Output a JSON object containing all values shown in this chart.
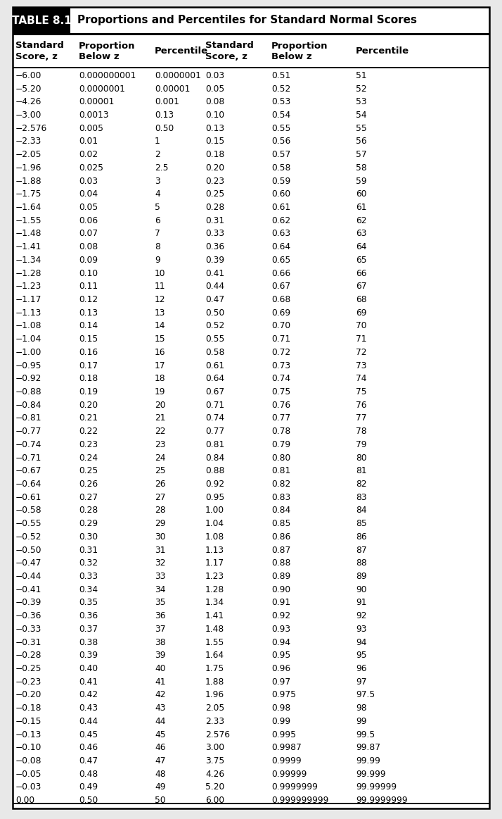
{
  "title": "Proportions and Percentiles for Standard Normal Scores",
  "table_label": "TABLE 8.1",
  "col_headers_left": [
    "Standard\nScore, z",
    "Proportion\nBelow z",
    "Percentile"
  ],
  "col_headers_right": [
    "Standard\nScore, z",
    "Proportion\nBelow z",
    "Percentile"
  ],
  "rows": [
    [
      "−6.00",
      "0.000000001",
      "0.0000001",
      "0.03",
      "0.51",
      "51"
    ],
    [
      "−5.20",
      "0.0000001",
      "0.00001",
      "0.05",
      "0.52",
      "52"
    ],
    [
      "−4.26",
      "0.00001",
      "0.001",
      "0.08",
      "0.53",
      "53"
    ],
    [
      "−3.00",
      "0.0013",
      "0.13",
      "0.10",
      "0.54",
      "54"
    ],
    [
      "−2.576",
      "0.005",
      "0.50",
      "0.13",
      "0.55",
      "55"
    ],
    [
      "−2.33",
      "0.01",
      "1",
      "0.15",
      "0.56",
      "56"
    ],
    [
      "−2.05",
      "0.02",
      "2",
      "0.18",
      "0.57",
      "57"
    ],
    [
      "−1.96",
      "0.025",
      "2.5",
      "0.20",
      "0.58",
      "58"
    ],
    [
      "−1.88",
      "0.03",
      "3",
      "0.23",
      "0.59",
      "59"
    ],
    [
      "−1.75",
      "0.04",
      "4",
      "0.25",
      "0.60",
      "60"
    ],
    [
      "−1.64",
      "0.05",
      "5",
      "0.28",
      "0.61",
      "61"
    ],
    [
      "−1.55",
      "0.06",
      "6",
      "0.31",
      "0.62",
      "62"
    ],
    [
      "−1.48",
      "0.07",
      "7",
      "0.33",
      "0.63",
      "63"
    ],
    [
      "−1.41",
      "0.08",
      "8",
      "0.36",
      "0.64",
      "64"
    ],
    [
      "−1.34",
      "0.09",
      "9",
      "0.39",
      "0.65",
      "65"
    ],
    [
      "−1.28",
      "0.10",
      "10",
      "0.41",
      "0.66",
      "66"
    ],
    [
      "−1.23",
      "0.11",
      "11",
      "0.44",
      "0.67",
      "67"
    ],
    [
      "−1.17",
      "0.12",
      "12",
      "0.47",
      "0.68",
      "68"
    ],
    [
      "−1.13",
      "0.13",
      "13",
      "0.50",
      "0.69",
      "69"
    ],
    [
      "−1.08",
      "0.14",
      "14",
      "0.52",
      "0.70",
      "70"
    ],
    [
      "−1.04",
      "0.15",
      "15",
      "0.55",
      "0.71",
      "71"
    ],
    [
      "−1.00",
      "0.16",
      "16",
      "0.58",
      "0.72",
      "72"
    ],
    [
      "−0.95",
      "0.17",
      "17",
      "0.61",
      "0.73",
      "73"
    ],
    [
      "−0.92",
      "0.18",
      "18",
      "0.64",
      "0.74",
      "74"
    ],
    [
      "−0.88",
      "0.19",
      "19",
      "0.67",
      "0.75",
      "75"
    ],
    [
      "−0.84",
      "0.20",
      "20",
      "0.71",
      "0.76",
      "76"
    ],
    [
      "−0.81",
      "0.21",
      "21",
      "0.74",
      "0.77",
      "77"
    ],
    [
      "−0.77",
      "0.22",
      "22",
      "0.77",
      "0.78",
      "78"
    ],
    [
      "−0.74",
      "0.23",
      "23",
      "0.81",
      "0.79",
      "79"
    ],
    [
      "−0.71",
      "0.24",
      "24",
      "0.84",
      "0.80",
      "80"
    ],
    [
      "−0.67",
      "0.25",
      "25",
      "0.88",
      "0.81",
      "81"
    ],
    [
      "−0.64",
      "0.26",
      "26",
      "0.92",
      "0.82",
      "82"
    ],
    [
      "−0.61",
      "0.27",
      "27",
      "0.95",
      "0.83",
      "83"
    ],
    [
      "−0.58",
      "0.28",
      "28",
      "1.00",
      "0.84",
      "84"
    ],
    [
      "−0.55",
      "0.29",
      "29",
      "1.04",
      "0.85",
      "85"
    ],
    [
      "−0.52",
      "0.30",
      "30",
      "1.08",
      "0.86",
      "86"
    ],
    [
      "−0.50",
      "0.31",
      "31",
      "1.13",
      "0.87",
      "87"
    ],
    [
      "−0.47",
      "0.32",
      "32",
      "1.17",
      "0.88",
      "88"
    ],
    [
      "−0.44",
      "0.33",
      "33",
      "1.23",
      "0.89",
      "89"
    ],
    [
      "−0.41",
      "0.34",
      "34",
      "1.28",
      "0.90",
      "90"
    ],
    [
      "−0.39",
      "0.35",
      "35",
      "1.34",
      "0.91",
      "91"
    ],
    [
      "−0.36",
      "0.36",
      "36",
      "1.41",
      "0.92",
      "92"
    ],
    [
      "−0.33",
      "0.37",
      "37",
      "1.48",
      "0.93",
      "93"
    ],
    [
      "−0.31",
      "0.38",
      "38",
      "1.55",
      "0.94",
      "94"
    ],
    [
      "−0.28",
      "0.39",
      "39",
      "1.64",
      "0.95",
      "95"
    ],
    [
      "−0.25",
      "0.40",
      "40",
      "1.75",
      "0.96",
      "96"
    ],
    [
      "−0.23",
      "0.41",
      "41",
      "1.88",
      "0.97",
      "97"
    ],
    [
      "−0.20",
      "0.42",
      "42",
      "1.96",
      "0.975",
      "97.5"
    ],
    [
      "−0.18",
      "0.43",
      "43",
      "2.05",
      "0.98",
      "98"
    ],
    [
      "−0.15",
      "0.44",
      "44",
      "2.33",
      "0.99",
      "99"
    ],
    [
      "−0.13",
      "0.45",
      "45",
      "2.576",
      "0.995",
      "99.5"
    ],
    [
      "−0.10",
      "0.46",
      "46",
      "3.00",
      "0.9987",
      "99.87"
    ],
    [
      "−0.08",
      "0.47",
      "47",
      "3.75",
      "0.9999",
      "99.99"
    ],
    [
      "−0.05",
      "0.48",
      "48",
      "4.26",
      "0.99999",
      "99.999"
    ],
    [
      "−0.03",
      "0.49",
      "49",
      "5.20",
      "0.9999999",
      "99.99999"
    ],
    [
      "0.00",
      "0.50",
      "50",
      "6.00",
      "0.999999999",
      "99.9999999"
    ]
  ],
  "outer_bg": "#e8e8e8",
  "table_bg": "#ffffff",
  "header_bg": "#000000",
  "header_text_color": "#ffffff",
  "col_header_text_color": "#000000",
  "row_text_color": "#000000",
  "border_color": "#000000"
}
